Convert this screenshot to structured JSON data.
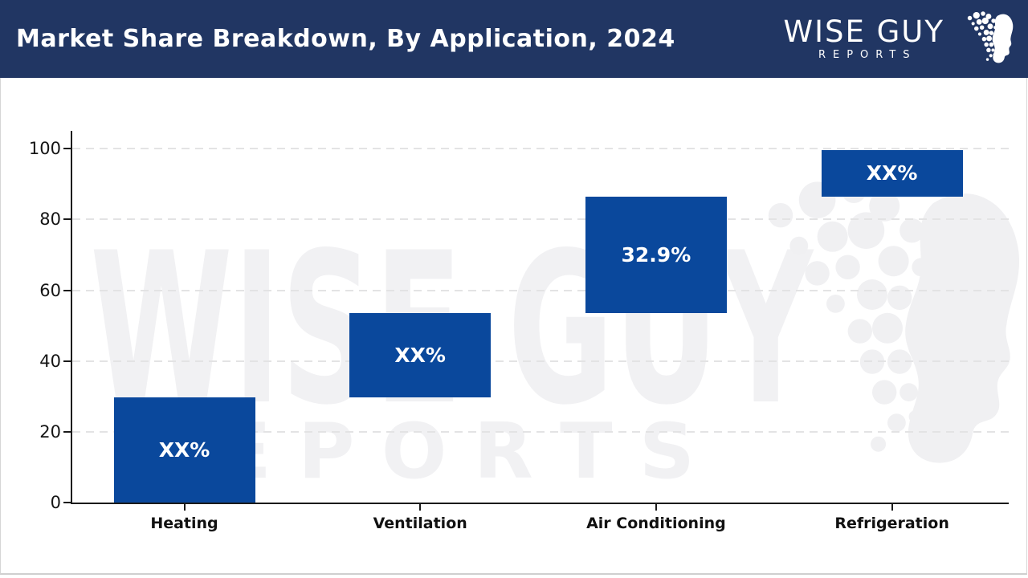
{
  "header": {
    "title": "Market Share Breakdown, By Application, 2024",
    "logo": {
      "line1": "WISE GUY",
      "line2": "REPORTS"
    }
  },
  "watermark": {
    "line1": "WISE GUY",
    "line2": "R E P O R T S"
  },
  "chart_data": {
    "type": "bar",
    "subtype": "floating-waterfall",
    "title": "Market Share Breakdown, By Application, 2024",
    "categories": [
      "Heating",
      "Ventilation",
      "Air Conditioning",
      "Refrigeration"
    ],
    "segments": [
      {
        "category": "Heating",
        "start": 0,
        "end": 29.7,
        "label": "XX%"
      },
      {
        "category": "Ventilation",
        "start": 29.7,
        "end": 53.5,
        "label": "XX%"
      },
      {
        "category": "Air Conditioning",
        "start": 53.5,
        "end": 86.4,
        "label": "32.9%"
      },
      {
        "category": "Refrigeration",
        "start": 86.4,
        "end": 99.7,
        "label": "XX%"
      }
    ],
    "yticks": [
      0,
      20,
      40,
      60,
      80,
      100
    ],
    "ylim": [
      0,
      105
    ],
    "xlabel": "",
    "ylabel": "",
    "grid": "horizontal-dashed",
    "legend": "none",
    "bar_color": "#0a489c",
    "bar_label_color": "#ffffff"
  },
  "colors": {
    "header_bg": "#213663",
    "bar": "#0a489c",
    "grid": "#e3e3e4",
    "axis": "#1a1a1a",
    "watermark": "#f0f0f2",
    "frame": "#d6d6d6"
  }
}
